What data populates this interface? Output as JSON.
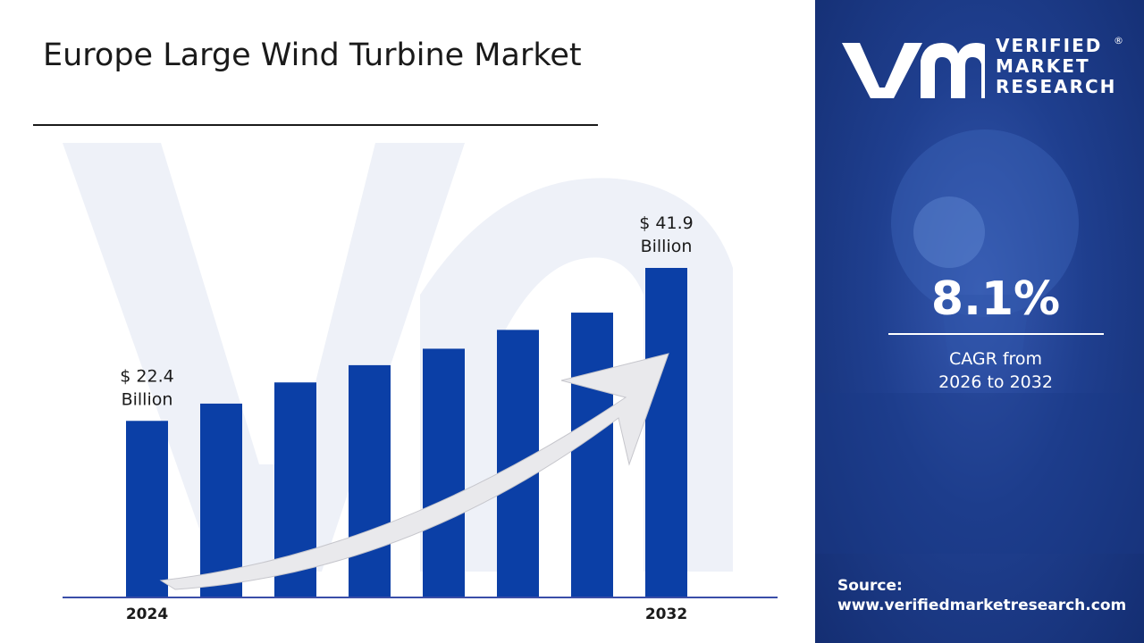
{
  "title": "Europe Large Wind Turbine Market",
  "chart_data": {
    "type": "bar",
    "title": "Europe Large Wind Turbine Market",
    "categories": [
      "2024",
      "",
      "",
      "",
      "",
      "",
      "",
      "2032"
    ],
    "values": [
      22.4,
      24.6,
      27.3,
      29.5,
      31.6,
      34.0,
      36.2,
      41.9
    ],
    "ylim": [
      0,
      46
    ],
    "bar_color": "#0b3fa6",
    "annotations": [
      {
        "category": "2024",
        "line1": "$  22.4",
        "line2": "Billion"
      },
      {
        "category": "2032",
        "line1": "$  41.9",
        "line2": "Billion"
      }
    ],
    "xlabel": "",
    "ylabel": ""
  },
  "sidebar": {
    "brand_lines": [
      "VERIFIED",
      "MARKET",
      "RESEARCH"
    ],
    "registered": "®",
    "cagr_value": "8.1%",
    "cagr_label_line1": "CAGR from",
    "cagr_label_line2": "2026 to 2032",
    "source_label": "Source:",
    "source_url": "www.verifiedmarketresearch.com",
    "background_color": "#1f3f8f"
  }
}
